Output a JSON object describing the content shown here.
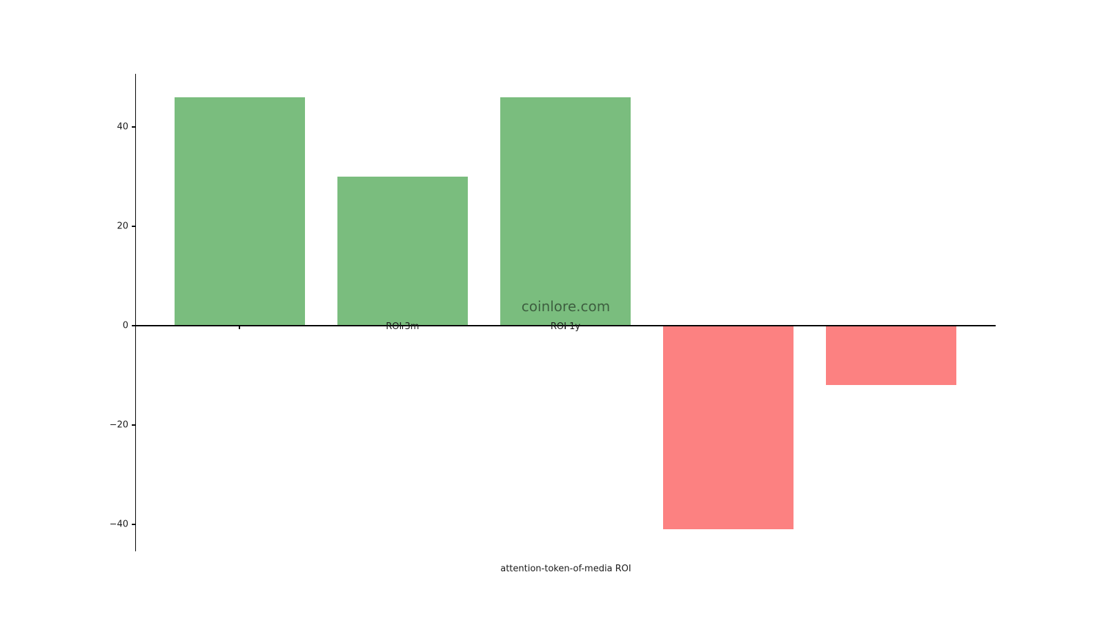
{
  "page": {
    "background": "#ffffff"
  },
  "chart_data": {
    "type": "bar",
    "title": "",
    "xlabel": "attention-token-of-media ROI",
    "ylabel": "",
    "categories": [
      "",
      "ROI 3m",
      "ROI 1y",
      "",
      ""
    ],
    "values": [
      46,
      30,
      46,
      -41,
      -12
    ],
    "bar_colors": [
      "#7abd7e",
      "#7abd7e",
      "#7abd7e",
      "#fc8181",
      "#fc8181"
    ],
    "positive_color": "#7abd7e",
    "negative_color": "#fc8181",
    "yticks": [
      40,
      20,
      0,
      -20,
      -40
    ],
    "ylim": [
      -45.4,
      50.7
    ],
    "x_ticks_visible": [
      true,
      true,
      true,
      false,
      false
    ],
    "grid": false,
    "legend": null,
    "watermark": "coinlore.com"
  }
}
